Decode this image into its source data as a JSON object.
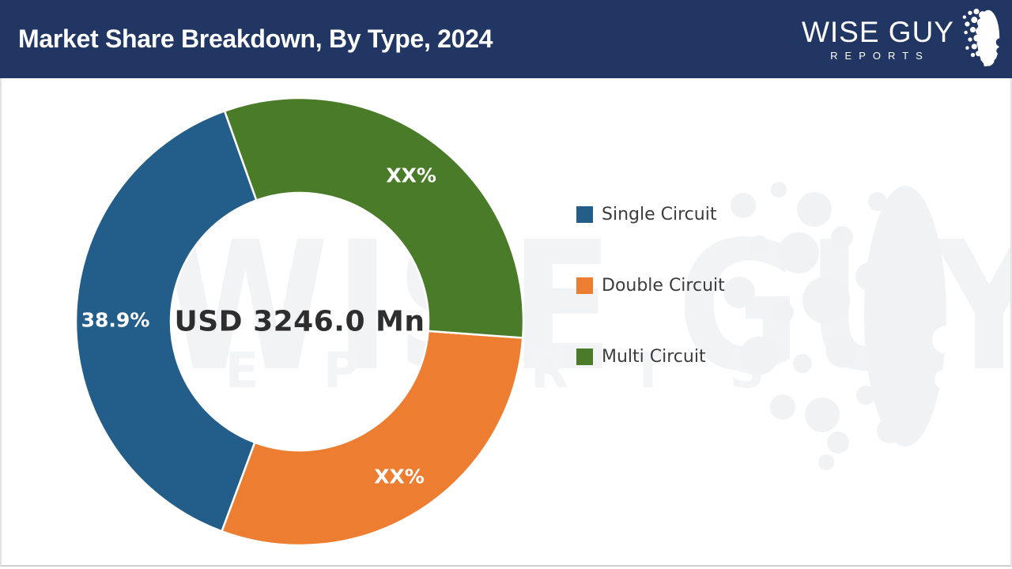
{
  "header": {
    "title": "Market Share Breakdown, By Type, 2024",
    "logo_line1": "WISE GUY",
    "logo_line2": "REPORTS"
  },
  "watermark": {
    "line1": "WISE GUY",
    "line2": "REPORTS"
  },
  "chart_data": {
    "type": "pie",
    "subtype": "donut",
    "title": "Market Share Breakdown, By Type, 2024",
    "center_label": "USD 3246.0 Mn",
    "start_angle_deg": 109.6,
    "direction": "counterclockwise",
    "legend_position": "right",
    "slices": [
      {
        "label": "Single Circuit",
        "display_value": "38.9%",
        "percent": 38.9,
        "color": "#235D89"
      },
      {
        "label": "Double Circuit",
        "display_value": "XX%",
        "percent": 29.5,
        "color": "#ED7D31"
      },
      {
        "label": "Multi Circuit",
        "display_value": "XX%",
        "percent": 31.6,
        "color": "#4A7B28"
      }
    ],
    "colors": {
      "header_bar": "#213663",
      "slice_label_text": "#FFFFFF",
      "legend_text": "#3C3C3C",
      "center_text": "#2E2E2E",
      "watermark": "#F2F3F5"
    }
  }
}
